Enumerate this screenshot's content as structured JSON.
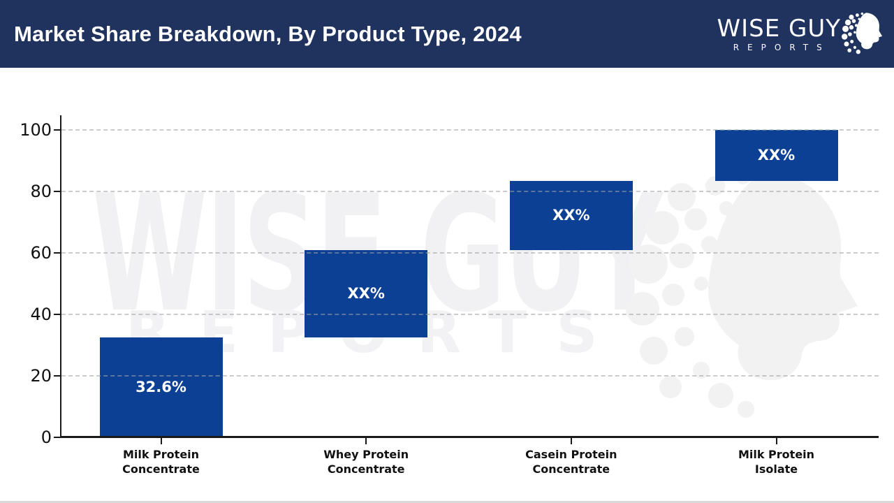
{
  "header": {
    "title": "Market Share Breakdown, By Product Type, 2024",
    "bg_color": "#20335f",
    "logo": {
      "line1": "WISE GUY",
      "line2": "REPORTS"
    }
  },
  "watermark": {
    "line1": "WISE GUY",
    "line2": "REPORTS"
  },
  "chart_data": {
    "type": "bar",
    "subtype": "stacked-waterfall-percentage",
    "title": "Market Share Breakdown, By Product Type, 2024",
    "ylim": [
      0,
      100
    ],
    "yticks": [
      0,
      20,
      40,
      60,
      80,
      100
    ],
    "grid": "horizontal-dashed",
    "legend": "none",
    "bar_color": "#0b4094",
    "categories": [
      "Milk Protein Concentrate",
      "Whey Protein Concentrate",
      "Casein Protein Concentrate",
      "Milk Protein Isolate"
    ],
    "bars": [
      {
        "category": "Milk Protein\nConcentrate",
        "label": "32.6%",
        "from": 0,
        "to": 32.6,
        "value": 32.6
      },
      {
        "category": "Whey Protein\nConcentrate",
        "label": "XX%",
        "from": 32.6,
        "to": 61.0,
        "value_est": 28.4
      },
      {
        "category": "Casein Protein\nConcentrate",
        "label": "XX%",
        "from": 61.0,
        "to": 83.5,
        "value_est": 22.5
      },
      {
        "category": "Milk Protein\nIsolate",
        "label": "XX%",
        "from": 83.5,
        "to": 100.0,
        "value_est": 16.5
      }
    ]
  }
}
